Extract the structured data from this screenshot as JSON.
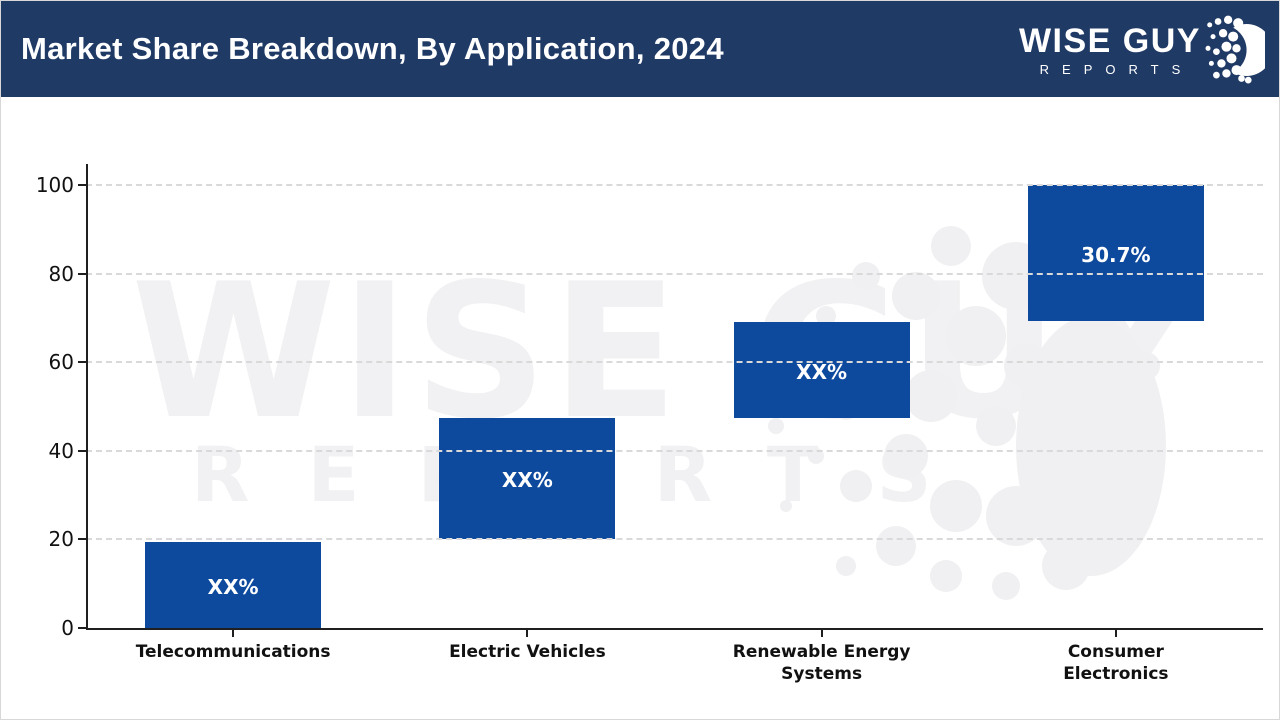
{
  "header": {
    "title": "Market Share Breakdown, By Application, 2024",
    "bg_color": "#203a66",
    "logo": {
      "name": "WISE GUY",
      "sub": "REPORTS"
    }
  },
  "watermark": {
    "line1": "WISE GUY",
    "line2": "REPORTS"
  },
  "chart_data": {
    "type": "bar",
    "variant": "waterfall",
    "title": "Market Share Breakdown, By Application, 2024",
    "categories": [
      "Telecommunications",
      "Electric Vehicles",
      "Renewable Energy\nSystems",
      "Consumer\nElectronics"
    ],
    "series": [
      {
        "name": "Market share (%)",
        "bars": [
          {
            "category": "Telecommunications",
            "start": 0,
            "end": 19.5,
            "label": "XX%"
          },
          {
            "category": "Electric Vehicles",
            "start": 20,
            "end": 47.5,
            "label": "XX%"
          },
          {
            "category": "Renewable Energy Systems",
            "start": 47.5,
            "end": 69,
            "label": "XX%"
          },
          {
            "category": "Consumer Electronics",
            "start": 69.3,
            "end": 100,
            "label": "30.7%"
          }
        ]
      }
    ],
    "xlabel": "",
    "ylabel": "",
    "ylim": [
      0,
      100
    ],
    "yticks": [
      0,
      20,
      40,
      60,
      80,
      100
    ],
    "grid": "horizontal-dashed",
    "legend": "none",
    "bar_color": "#0d4a9e",
    "bar_label_color": "#ffffff",
    "axis_color": "#1f1f1f"
  }
}
